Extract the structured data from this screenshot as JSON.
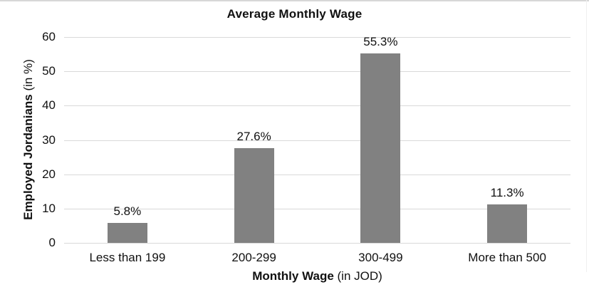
{
  "page": {
    "background": "#ffffff",
    "top_border_color": "#d7d7d7"
  },
  "chart_data": {
    "type": "bar",
    "title": "Average Monthly Wage",
    "categories": [
      "Less than 199",
      "200-299",
      "300-499",
      "More than 500"
    ],
    "values": [
      5.8,
      27.6,
      55.3,
      11.3
    ],
    "data_labels": [
      "5.8%",
      "27.6%",
      "55.3%",
      "11.3%"
    ],
    "xlabel": {
      "bold": "Monthly Wage",
      "regular": " (in JOD)"
    },
    "ylabel": {
      "bold": "Employed Jordanians",
      "regular": " (in %)"
    },
    "ylim": [
      0,
      60
    ],
    "yticks": [
      0,
      10,
      20,
      30,
      40,
      50,
      60
    ],
    "grid": true,
    "legend": "none",
    "bar_color": "#818181",
    "gridline_color": "#d9d9d9",
    "text_color": "#111111"
  }
}
